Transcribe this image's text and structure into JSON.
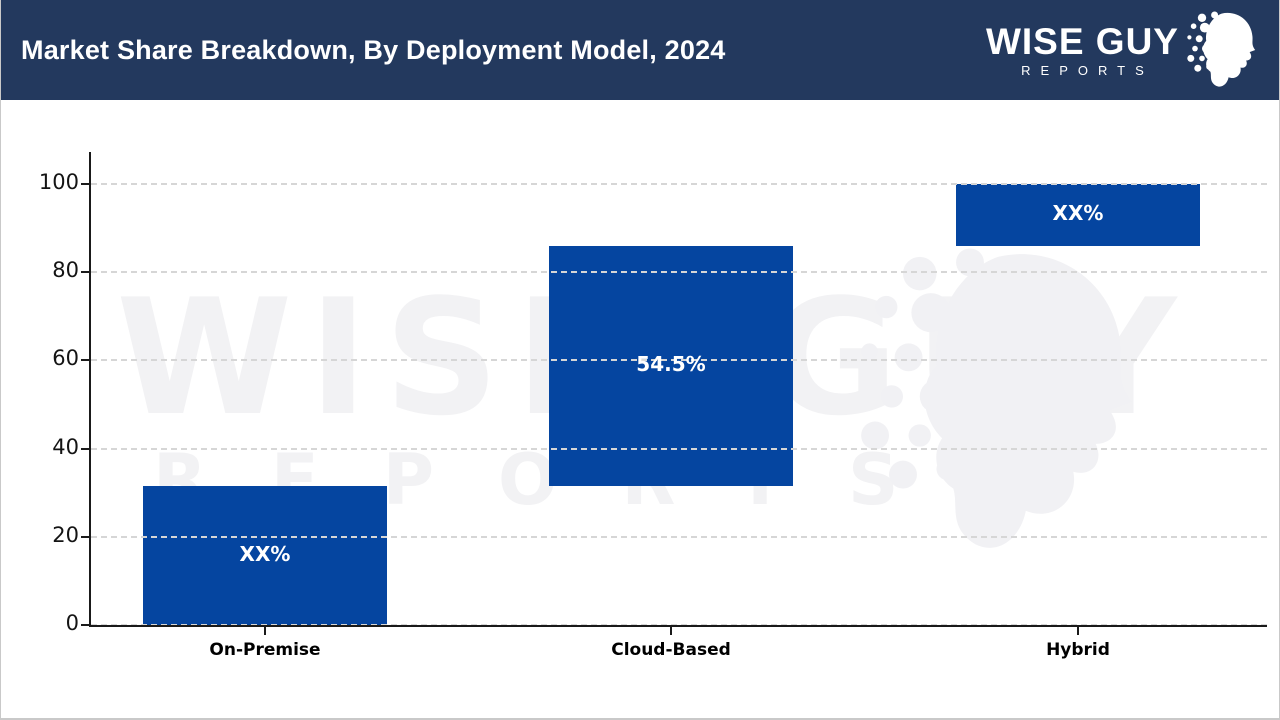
{
  "header": {
    "title": "Market Share Breakdown, By Deployment Model, 2024",
    "logo": {
      "line1": "WISE GUY",
      "line2": "REPORTS"
    }
  },
  "watermark": {
    "line1": "WISE GUY",
    "line2": "REPORTS"
  },
  "chart_data": {
    "type": "bar",
    "subtype": "floating-waterfall",
    "title": "Market Share Breakdown, By Deployment Model, 2024",
    "categories": [
      "On-Premise",
      "Cloud-Based",
      "Hybrid"
    ],
    "bars": [
      {
        "category": "On-Premise",
        "start": 0,
        "end": 31.5,
        "height": 31.5,
        "label": "XX%"
      },
      {
        "category": "Cloud-Based",
        "start": 31.5,
        "end": 86.0,
        "height": 54.5,
        "label": "54.5%"
      },
      {
        "category": "Hybrid",
        "start": 86.0,
        "end": 100.0,
        "height": 14.0,
        "label": "XX%"
      }
    ],
    "xlabel": "",
    "ylabel": "",
    "y_ticks": [
      0,
      20,
      40,
      60,
      80,
      100
    ],
    "ylim": [
      0,
      105
    ],
    "grid": {
      "axis": "y",
      "style": "dashed",
      "color": "#d6d6d6",
      "drawn_over_bars": true
    },
    "legend": null,
    "colors": {
      "bar": "#0545a0",
      "bar_label": "#ffffff",
      "axis": "#1a1a1a",
      "header_bg": "#23395e",
      "header_text": "#ffffff",
      "watermark": "#f2f2f4"
    }
  }
}
